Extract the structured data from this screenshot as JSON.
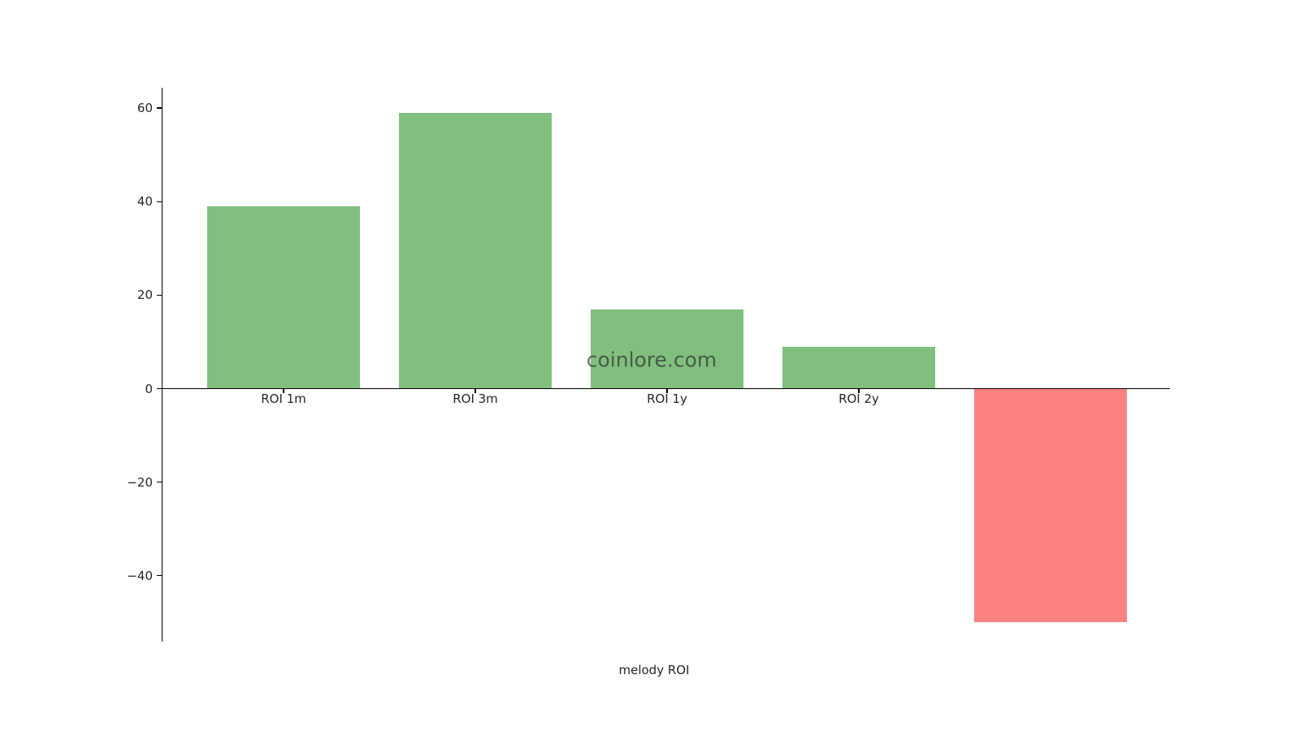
{
  "figure": {
    "background": "#ffffff"
  },
  "colors": {
    "bar_positive": "#81bf7e",
    "bar_negative": "#fc8181",
    "axis": "#000000",
    "tick_label": "#262626",
    "title_text": "#262626",
    "watermark_text": "#2d2d2d"
  },
  "chart_data": {
    "type": "bar",
    "title": "melody ROI",
    "xlabel": "",
    "ylabel": "",
    "watermark": "coinlore.com",
    "categories": [
      "ROI 1m",
      "ROI 3m",
      "ROI 1y",
      "ROI 2y",
      ""
    ],
    "label_visible": [
      true,
      true,
      true,
      true,
      false
    ],
    "values": [
      39,
      59,
      17,
      9,
      -50
    ],
    "yticks": [
      {
        "label": "60",
        "value": 60
      },
      {
        "label": "40",
        "value": 40
      },
      {
        "label": "20",
        "value": 20
      },
      {
        "label": "0",
        "value": 0
      },
      {
        "label": "−20",
        "value": -20
      },
      {
        "label": "−40",
        "value": -40
      }
    ],
    "ylim": [
      -54,
      64
    ],
    "grid": false,
    "legend": null,
    "color_rule": "green when value >= 0, red when value < 0"
  }
}
